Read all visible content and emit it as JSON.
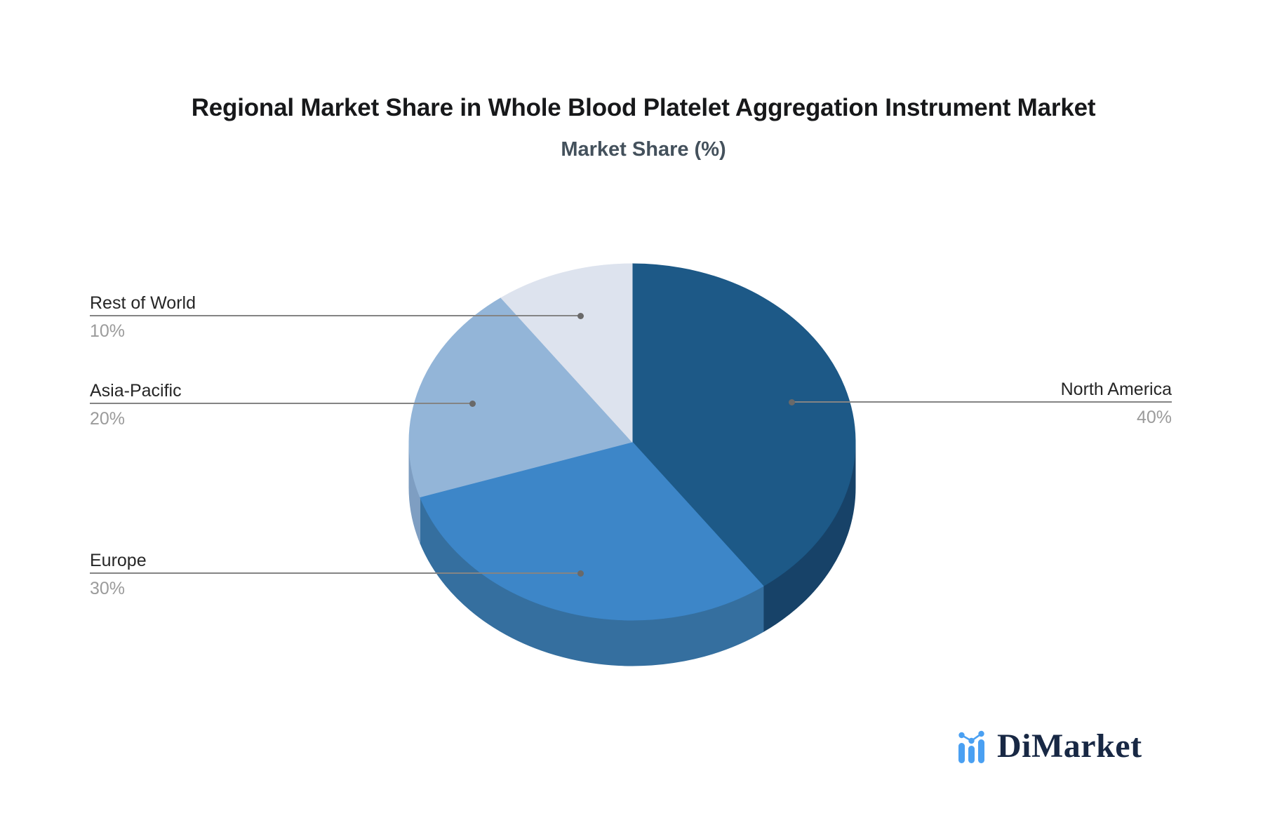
{
  "header": {
    "title": "Regional Market Share in Whole Blood Platelet Aggregation Instrument Market",
    "subtitle": "Market Share (%)"
  },
  "chart_data": {
    "type": "pie",
    "title": "Regional Market Share in Whole Blood Platelet Aggregation Instrument Market",
    "subtitle": "Market Share (%)",
    "unit": "%",
    "style": "3d-pie",
    "start_angle_deg": 0,
    "direction": "clockwise",
    "labels_outside": true,
    "legend": "none",
    "slices": [
      {
        "label": "North America",
        "value": 40,
        "pct": "40%",
        "color": "#1d5987",
        "side_color": "#174268"
      },
      {
        "label": "Europe",
        "value": 30,
        "pct": "30%",
        "color": "#3d86c8",
        "side_color": "#356f9f"
      },
      {
        "label": "Asia-Pacific",
        "value": 20,
        "pct": "20%",
        "color": "#93b5d8",
        "side_color": "#7e9ec2"
      },
      {
        "label": "Rest of World",
        "value": 10,
        "pct": "10%",
        "color": "#dde3ee",
        "side_color": "#c3cedd"
      }
    ]
  },
  "colors": {
    "title": "#17181a",
    "subtitle": "#44515c",
    "label_text": "#262626",
    "pct_text": "#9b9b9b",
    "leader_line": "#848484"
  },
  "logo": {
    "text": "DiMarket",
    "icon": "bar-line-chart-icon",
    "icon_color": "#4aa0f2",
    "text_color": "#182844"
  }
}
